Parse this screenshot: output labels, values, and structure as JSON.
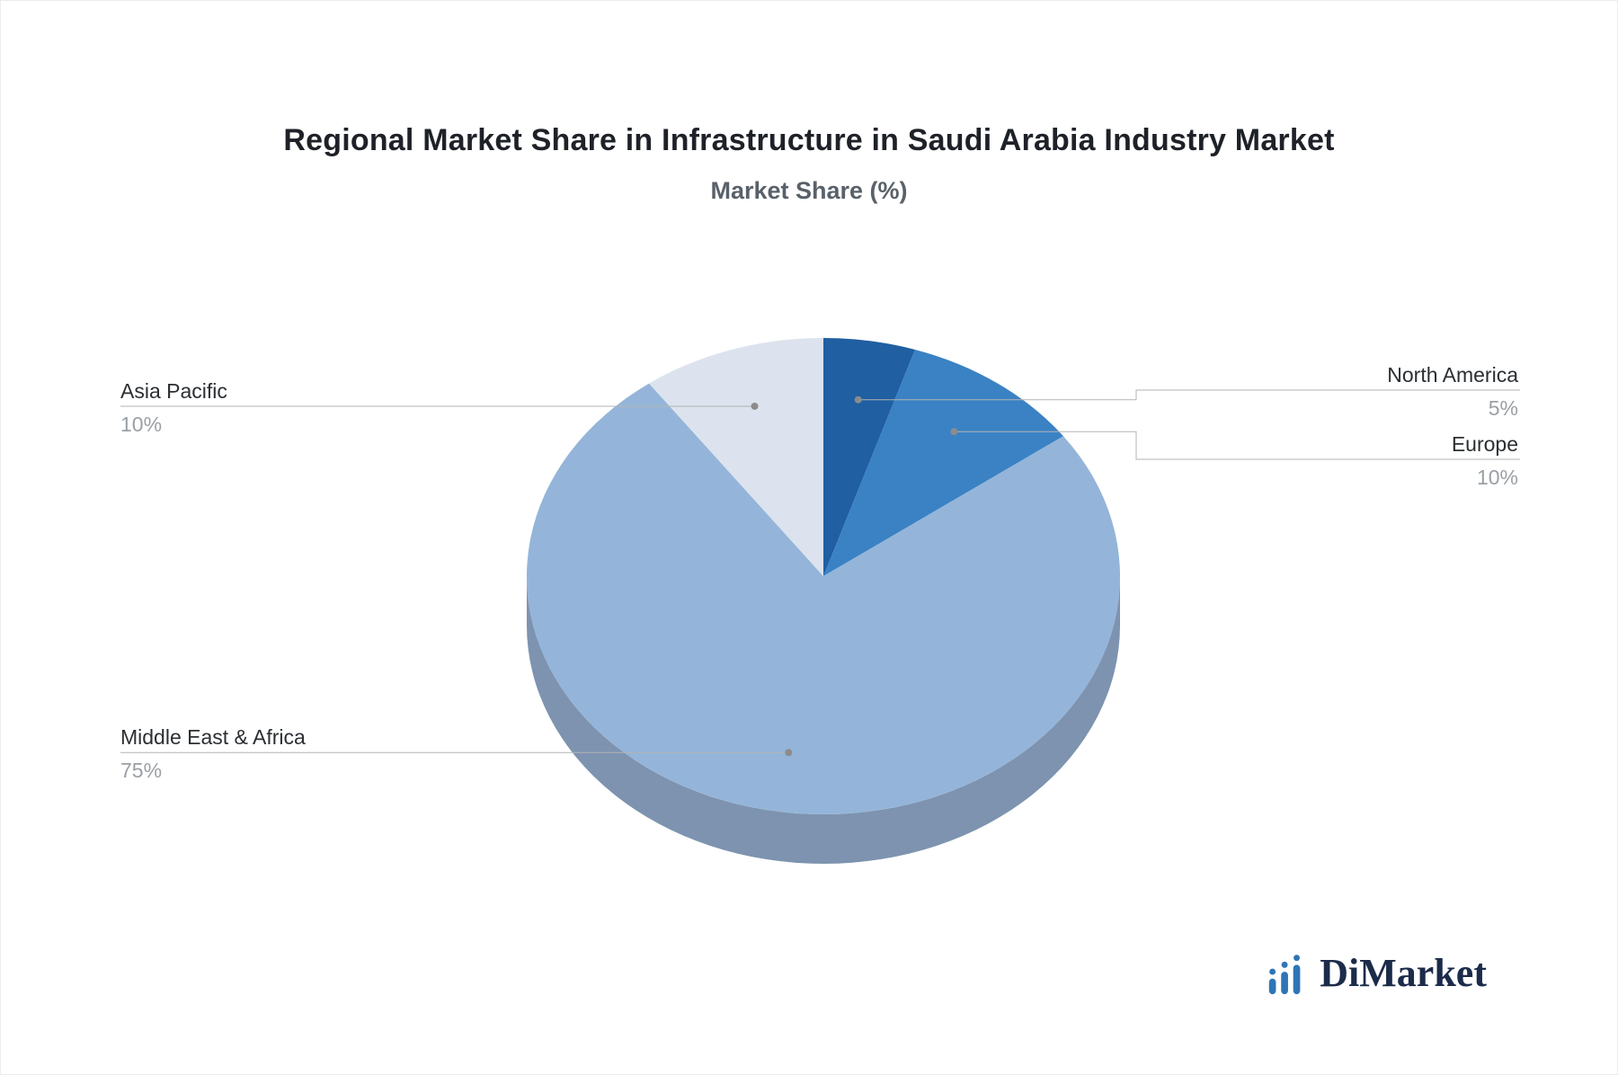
{
  "title": "Regional Market Share in Infrastructure in Saudi Arabia Industry Market",
  "subtitle": "Market Share (%)",
  "chart_data": {
    "type": "pie",
    "title": "Regional Market Share in Infrastructure in Saudi Arabia Industry Market",
    "subtitle": "Market Share (%)",
    "unit": "%",
    "style": "3d",
    "direction": "clockwise",
    "start_angle_deg": 0,
    "legend_position": "callout-labels",
    "rim_color": "#7d93af",
    "callout_line_color": "#b3b3b3",
    "callout_dot_color": "#8c8c8c",
    "slices": [
      {
        "label": "North America",
        "value": 5,
        "value_label": "5%",
        "color": "#1f5fa2"
      },
      {
        "label": "Europe",
        "value": 10,
        "value_label": "10%",
        "color": "#3a82c4"
      },
      {
        "label": "Middle East & Africa",
        "value": 75,
        "value_label": "75%",
        "color": "#94b5d9"
      },
      {
        "label": "Asia Pacific",
        "value": 10,
        "value_label": "10%",
        "color": "#dce3ee"
      }
    ]
  },
  "logo": {
    "text": "DiMarket",
    "icon": "bar-chart-icon",
    "icon_color": "#2e75b6",
    "text_color": "#1b2b4a"
  }
}
